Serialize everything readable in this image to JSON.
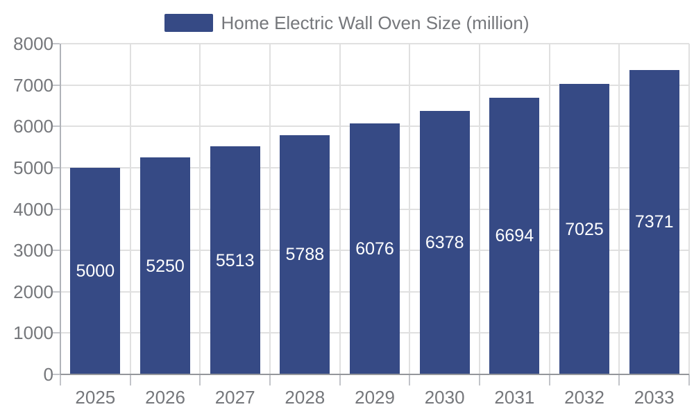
{
  "chart_data": {
    "type": "bar",
    "title": "Home Electric Wall Oven Size (million)",
    "categories": [
      "2025",
      "2026",
      "2027",
      "2028",
      "2029",
      "2030",
      "2031",
      "2032",
      "2033"
    ],
    "series": [
      {
        "name": "Home Electric Wall Oven Size (million)",
        "values": [
          5000,
          5250,
          5513,
          5788,
          6076,
          6378,
          6694,
          7025,
          7371
        ]
      }
    ],
    "xlabel": "",
    "ylabel": "",
    "ylim": [
      0,
      8000
    ],
    "y_tick_labels": [
      "0",
      "1000",
      "2000",
      "3000",
      "4000",
      "5000",
      "6000",
      "7000",
      "8000"
    ],
    "grid": true,
    "legend_position": "top-center",
    "value_label_position": "inside-center",
    "colors": {
      "bar": "#364a85",
      "bar_label": "#ffffff",
      "axis_text": "#75777b",
      "legend_text": "#75777b",
      "gridline": "#e0e0e0",
      "y_axis_line": "#b0b3b9",
      "x_axis_line": "#94969b",
      "tick": "#c2c4c9",
      "background": "#ffffff"
    }
  }
}
